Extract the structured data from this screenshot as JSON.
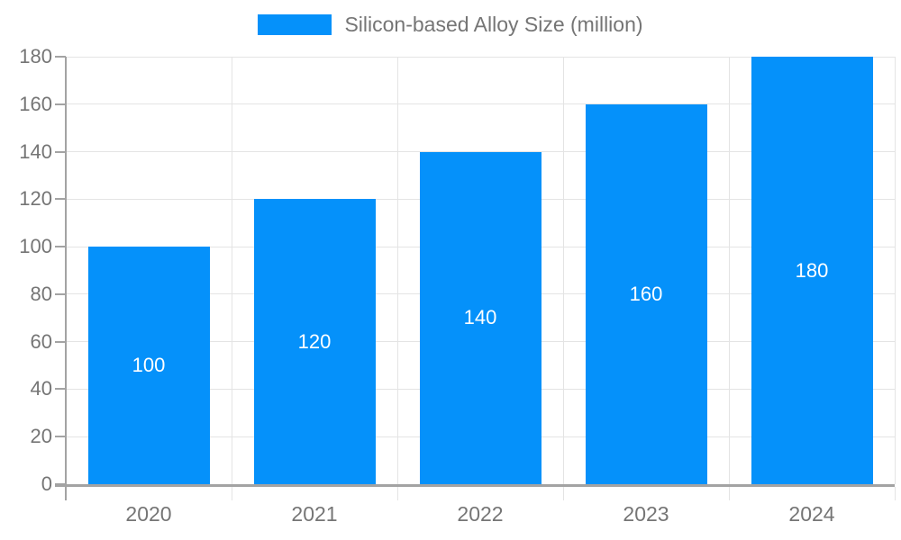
{
  "legend": {
    "label": "Silicon-based Alloy Size (million)"
  },
  "colors": {
    "bar": "#0591FA",
    "axis": "#a3a3a3",
    "grid": "#e4e4e4",
    "tick_text": "#757575",
    "value_text": "#ffffff",
    "legend_text": "#757575"
  },
  "chart_data": {
    "type": "bar",
    "title": "Silicon-based Alloy Size (million)",
    "categories": [
      "2020",
      "2021",
      "2022",
      "2023",
      "2024"
    ],
    "values": [
      100,
      120,
      140,
      160,
      180
    ],
    "bar_labels": [
      "100",
      "120",
      "140",
      "160",
      "180"
    ],
    "xlabel": "",
    "ylabel": "",
    "ylim": [
      0,
      180
    ],
    "ytick_step": 20,
    "ytick_labels": [
      "0",
      "20",
      "40",
      "60",
      "80",
      "100",
      "120",
      "140",
      "160",
      "180"
    ],
    "grid": true,
    "legend_position": "top-center"
  }
}
